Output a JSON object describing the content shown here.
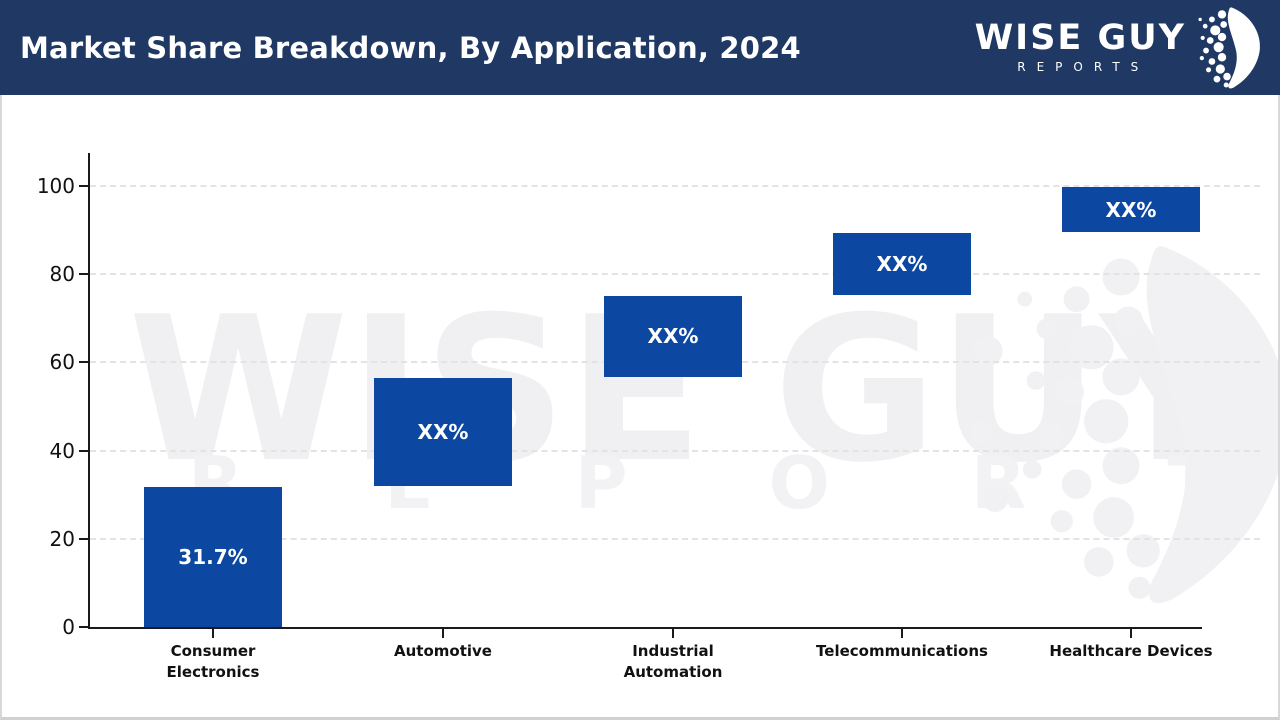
{
  "header": {
    "title": "Market Share Breakdown, By Application, 2024",
    "brand_line1": "WISE GUY",
    "brand_line2": "REPORTS",
    "bg_color": "#1f3864"
  },
  "watermark": {
    "line1": "WISE GUY",
    "line2": "R E P O R T S"
  },
  "chart_data": {
    "type": "bar",
    "subtype": "floating-waterfall",
    "title": "Market Share Breakdown, By Application, 2024",
    "categories": [
      "Consumer Electronics",
      "Automotive",
      "Industrial Automation",
      "Telecommunications",
      "Healthcare Devices"
    ],
    "category_label_lines": [
      [
        "Consumer",
        "Electronics"
      ],
      [
        "Automotive"
      ],
      [
        "Industrial",
        "Automation"
      ],
      [
        "Telecommunications"
      ],
      [
        "Healthcare Devices"
      ]
    ],
    "segments": [
      {
        "category": "Consumer Electronics",
        "start": 0,
        "end": 31.7,
        "label": "31.7%"
      },
      {
        "category": "Automotive",
        "start": 32,
        "end": 56.5,
        "label": "XX%"
      },
      {
        "category": "Industrial Automation",
        "start": 56.8,
        "end": 75,
        "label": "XX%"
      },
      {
        "category": "Telecommunications",
        "start": 75.2,
        "end": 89.3,
        "label": "XX%"
      },
      {
        "category": "Healthcare Devices",
        "start": 89.5,
        "end": 99.8,
        "label": "XX%"
      }
    ],
    "xlabel": "",
    "ylabel": "",
    "ylim": [
      0,
      107
    ],
    "yticks": [
      0,
      20,
      40,
      60,
      80,
      100
    ],
    "grid": "horizontal-dashed",
    "legend": "none",
    "bar_color": "#0c47a1",
    "bar_label_color": "#ffffff",
    "axis_color": "#1a1a1a",
    "gridline_color": "#e3e3e3"
  }
}
